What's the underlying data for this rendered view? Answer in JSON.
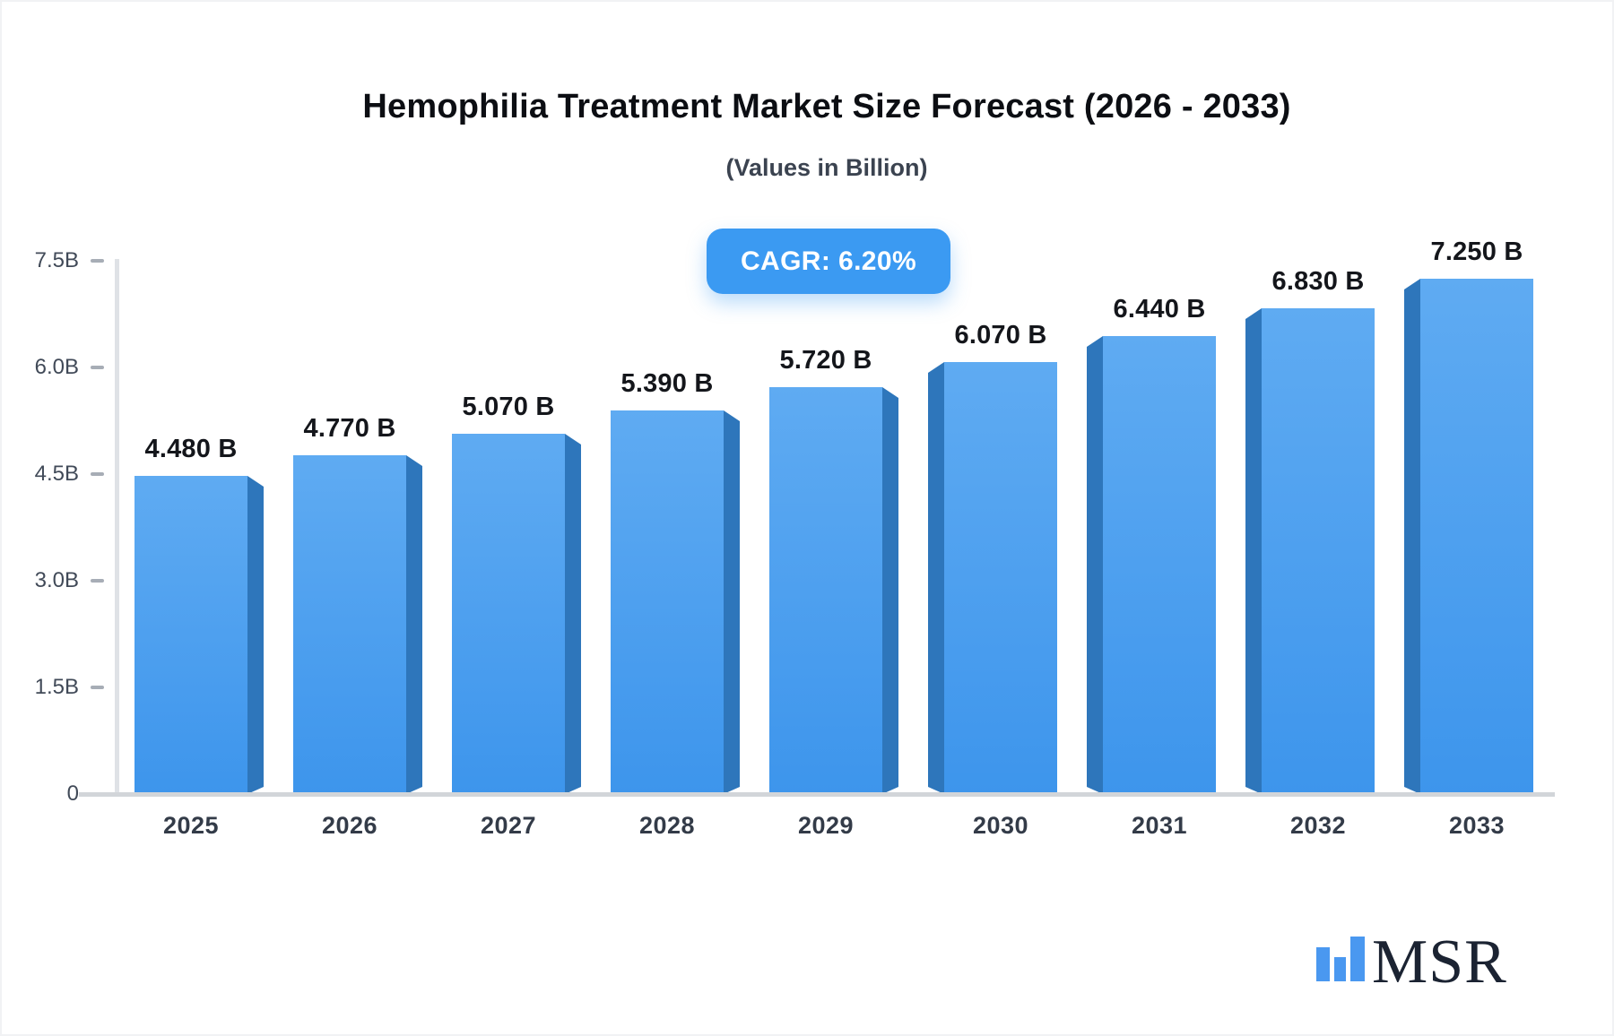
{
  "header": {
    "title": "Hemophilia Treatment Market Size Forecast (2026 - 2033)",
    "subtitle": "(Values in Billion)",
    "cagr_badge": "CAGR: 6.20%"
  },
  "chart_data": {
    "type": "bar",
    "title": "Hemophilia Treatment Market Size Forecast (2026 - 2033)",
    "subtitle": "(Values in Billion)",
    "cagr_percent": 6.2,
    "unit": "Billion",
    "categories": [
      "2025",
      "2026",
      "2027",
      "2028",
      "2029",
      "2030",
      "2031",
      "2032",
      "2033"
    ],
    "values": [
      4.48,
      4.77,
      5.07,
      5.39,
      5.72,
      6.07,
      6.44,
      6.83,
      7.25
    ],
    "value_labels": [
      "4.480 B",
      "4.770 B",
      "5.070 B",
      "5.390 B",
      "5.720 B",
      "6.070 B",
      "6.440 B",
      "6.830 B",
      "7.250 B"
    ],
    "y_ticks": [
      {
        "value": 0,
        "label": "0"
      },
      {
        "value": 1.5,
        "label": "1.5B"
      },
      {
        "value": 3,
        "label": "3.0B"
      },
      {
        "value": 4.5,
        "label": "4.5B"
      },
      {
        "value": 6,
        "label": "6.0B"
      },
      {
        "value": 7.5,
        "label": "7.5B"
      }
    ],
    "ylim": [
      0,
      7.5
    ],
    "grid": false,
    "legend": "none",
    "bar_colors": {
      "body_top": "#5fabf2",
      "body_bottom": "#3d95ec",
      "side": "#2e76bb"
    }
  },
  "colors": {
    "background": "#ffffff",
    "badge": "#3b9af2",
    "badge_text": "#ffffff",
    "axis_line": "#dfe2e6",
    "baseline": "#d2d5d9",
    "tick": "#a7adb6",
    "title_text": "#0c0e13",
    "subtitle_text": "#3b4350",
    "value_label_text": "#14161b",
    "axis_label_text": "#414a58",
    "year_label_text": "#333b48",
    "logo_text_color": "#1b2332",
    "logo_bar_color": "#4a98f0"
  },
  "footer": {
    "logo_text": "MSR"
  }
}
